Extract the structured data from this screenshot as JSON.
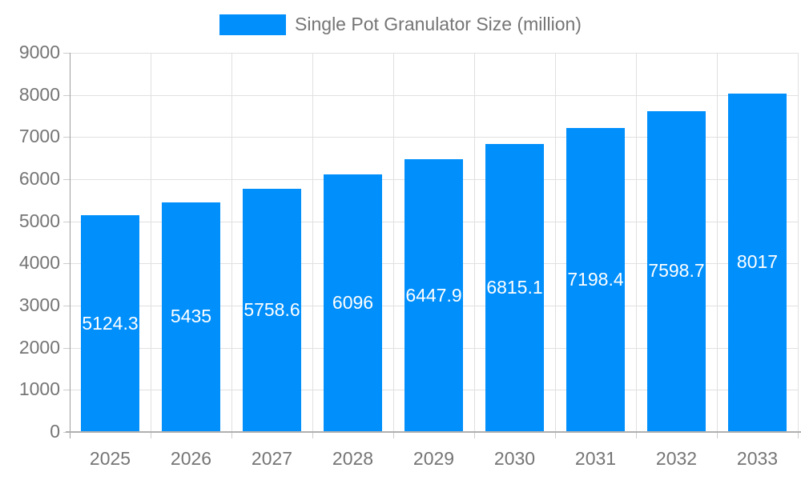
{
  "legend": {
    "label": "Single Pot Granulator Size (million)",
    "swatch_color": "#008FFB"
  },
  "chart_data": {
    "type": "bar",
    "title": "Single Pot Granulator Size (million)",
    "series_name": "Single Pot Granulator Size (million)",
    "categories": [
      "2025",
      "2026",
      "2027",
      "2028",
      "2029",
      "2030",
      "2031",
      "2032",
      "2033"
    ],
    "values": [
      5124.3,
      5435,
      5758.6,
      6096,
      6447.9,
      6815.1,
      7198.4,
      7598.7,
      8017
    ],
    "value_labels": [
      "5124.3",
      "5435",
      "5758.6",
      "6096",
      "6447.9",
      "6815.1",
      "7198.4",
      "7598.7",
      "8017"
    ],
    "ytick_labels": [
      "0",
      "1000",
      "2000",
      "3000",
      "4000",
      "5000",
      "6000",
      "7000",
      "8000",
      "9000"
    ],
    "xlabel": "",
    "ylabel": "",
    "ylim": [
      0,
      9000
    ],
    "ytick_step": 1000,
    "grid": true,
    "legend_position": "top",
    "colors": {
      "bar": "#008FFB",
      "value_label": "#ffffff",
      "axis_text": "#757575",
      "grid_line": "#e0e0e0",
      "y_axis_line": "#9e9e9e",
      "x_axis_line": "#b0b0b0",
      "tick": "#cccccc"
    }
  }
}
